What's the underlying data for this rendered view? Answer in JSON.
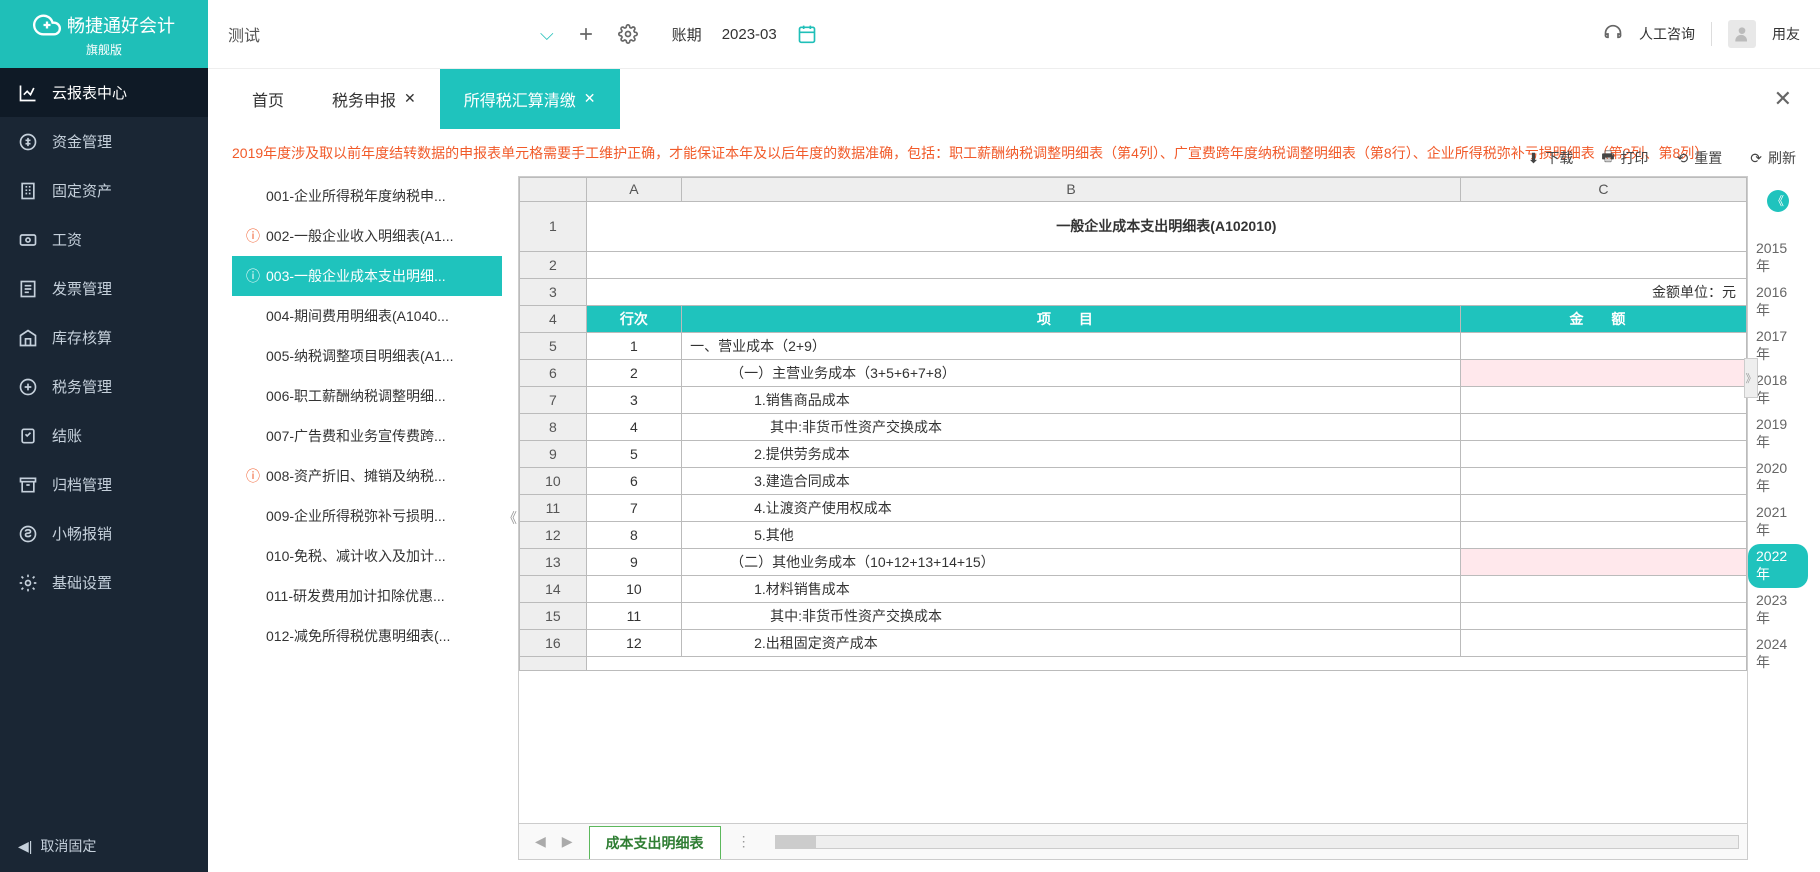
{
  "brand": {
    "name": "畅捷通好会计",
    "edition": "旗舰版"
  },
  "sidebar": {
    "items": [
      {
        "label": "云报表中心",
        "active": true,
        "icon": "chart"
      },
      {
        "label": "资金管理",
        "icon": "money"
      },
      {
        "label": "固定资产",
        "icon": "building"
      },
      {
        "label": "工资",
        "icon": "salary"
      },
      {
        "label": "发票管理",
        "icon": "invoice"
      },
      {
        "label": "库存核算",
        "icon": "inventory"
      },
      {
        "label": "税务管理",
        "icon": "tax"
      },
      {
        "label": "结账",
        "icon": "close-book"
      },
      {
        "label": "归档管理",
        "icon": "archive"
      },
      {
        "label": "小畅报销",
        "icon": "expense"
      },
      {
        "label": "基础设置",
        "icon": "settings"
      }
    ],
    "footer": "取消固定"
  },
  "topbar": {
    "company": "测试",
    "period_label": "账期",
    "period_value": "2023-03",
    "support": "人工咨询",
    "user": "用友"
  },
  "tabs": {
    "items": [
      {
        "label": "首页",
        "closable": false
      },
      {
        "label": "税务申报",
        "closable": true
      },
      {
        "label": "所得税汇算清缴",
        "closable": true,
        "active": true
      }
    ]
  },
  "warning": "2019年度涉及取以前年度结转数据的申报表单元格需要手工维护正确，才能保证本年及以后年度的数据准确，包括：职工薪酬纳税调整明细表（第4列）、广宣费跨年度纳税调整明细表（第8行）、企业所得税弥补亏损明细表（第2列、第8列）",
  "toolbar": {
    "download": "下载",
    "print": "打印",
    "reset": "重置",
    "refresh": "刷新"
  },
  "form_list": [
    {
      "label": "001-企业所得税年度纳税申...",
      "warn": false
    },
    {
      "label": "002-一般企业收入明细表(A1...",
      "warn": true
    },
    {
      "label": "003-一般企业成本支出明细...",
      "warn": true,
      "active": true
    },
    {
      "label": "004-期间费用明细表(A1040...",
      "warn": false
    },
    {
      "label": "005-纳税调整项目明细表(A1...",
      "warn": false
    },
    {
      "label": "006-职工薪酬纳税调整明细...",
      "warn": false
    },
    {
      "label": "007-广告费和业务宣传费跨...",
      "warn": false
    },
    {
      "label": "008-资产折旧、摊销及纳税...",
      "warn": true
    },
    {
      "label": "009-企业所得税弥补亏损明...",
      "warn": false
    },
    {
      "label": "010-免税、减计收入及加计...",
      "warn": false
    },
    {
      "label": "011-研发费用加计扣除优惠...",
      "warn": false
    },
    {
      "label": "012-减免所得税优惠明细表(...",
      "warn": false
    }
  ],
  "sheet": {
    "columns": [
      "A",
      "B",
      "C"
    ],
    "title": "一般企业成本支出明细表(A102010)",
    "unit_label": "金额单位：元",
    "headers": {
      "seq": "行次",
      "item": "项          目",
      "amount": "金      额"
    },
    "rows": [
      {
        "seq": "1",
        "item": "一、营业成本（2+9）",
        "indent": 0,
        "pink": false
      },
      {
        "seq": "2",
        "item": "（一）主营业务成本（3+5+6+7+8）",
        "indent": 1,
        "pink": true
      },
      {
        "seq": "3",
        "item": "1.销售商品成本",
        "indent": 2,
        "pink": false
      },
      {
        "seq": "4",
        "item": "其中:非货币性资产交换成本",
        "indent": 3,
        "pink": false
      },
      {
        "seq": "5",
        "item": "2.提供劳务成本",
        "indent": 2,
        "pink": false
      },
      {
        "seq": "6",
        "item": "3.建造合同成本",
        "indent": 2,
        "pink": false
      },
      {
        "seq": "7",
        "item": "4.让渡资产使用权成本",
        "indent": 2,
        "pink": false
      },
      {
        "seq": "8",
        "item": "5.其他",
        "indent": 2,
        "pink": false
      },
      {
        "seq": "9",
        "item": "（二）其他业务成本（10+12+13+14+15）",
        "indent": 1,
        "pink": true
      },
      {
        "seq": "10",
        "item": "1.材料销售成本",
        "indent": 2,
        "pink": false
      },
      {
        "seq": "11",
        "item": "其中:非货币性资产交换成本",
        "indent": 3,
        "pink": false
      },
      {
        "seq": "12",
        "item": "2.出租固定资产成本",
        "indent": 2,
        "pink": false
      }
    ],
    "tab": "成本支出明细表"
  },
  "years": [
    "2015年",
    "2016年",
    "2017年",
    "2018年",
    "2019年",
    "2020年",
    "2021年",
    "2022年",
    "2023年",
    "2024年"
  ],
  "active_year": "2022年"
}
